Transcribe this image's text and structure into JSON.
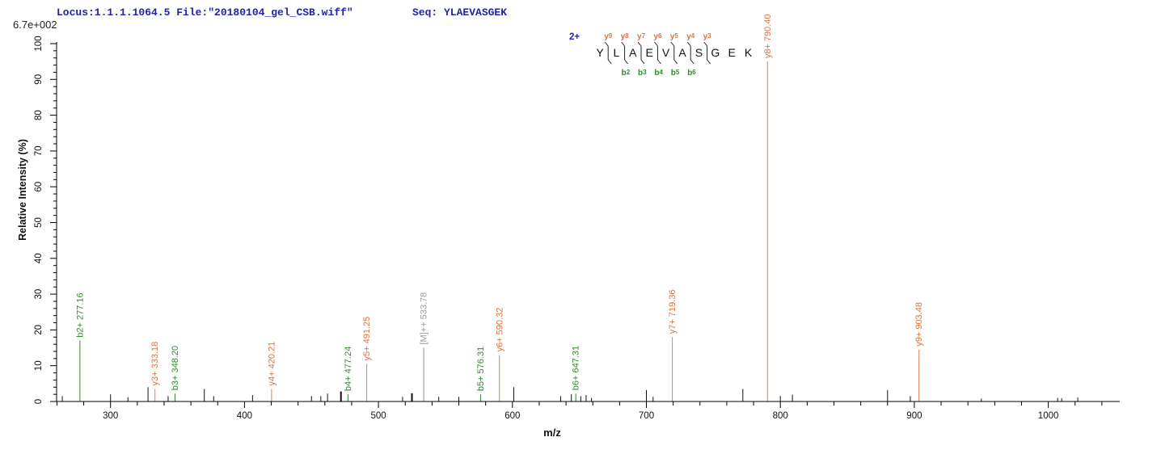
{
  "header": {
    "locus_file": "Locus:1.1.1.1064.5 File:\"20180104_gel_CSB.wiff\"",
    "seq_label": "Seq: YLAEVASGEK",
    "max_intensity": "6.7e+002"
  },
  "colors": {
    "header_blue": "#2121ae",
    "charge_blue": "#2222cc",
    "y_ion_label": "#e2703c",
    "y_ion_stick": "#e08050",
    "b_ion_label": "#2e8b2e",
    "b_ion_stick": "#2a8a2a",
    "precursor_label": "#9a9a9a",
    "precursor_stick": "#888888",
    "unassigned_stick": "#111111",
    "axis": "#000000"
  },
  "annotation": {
    "charge": "2+",
    "residues": [
      "Y",
      "L",
      "A",
      "E",
      "V",
      "A",
      "S",
      "G",
      "E",
      "K"
    ],
    "y_ions": [
      {
        "label": "y",
        "num": "9",
        "after": 1
      },
      {
        "label": "y",
        "num": "8",
        "after": 2
      },
      {
        "label": "y",
        "num": "7",
        "after": 3
      },
      {
        "label": "y",
        "num": "6",
        "after": 4
      },
      {
        "label": "y",
        "num": "5",
        "after": 5
      },
      {
        "label": "y",
        "num": "4",
        "after": 6
      },
      {
        "label": "y",
        "num": "3",
        "after": 7
      }
    ],
    "b_ions": [
      {
        "label": "b",
        "num": "2",
        "after": 2
      },
      {
        "label": "b",
        "num": "3",
        "after": 3
      },
      {
        "label": "b",
        "num": "4",
        "after": 4
      },
      {
        "label": "b",
        "num": "5",
        "after": 5
      },
      {
        "label": "b",
        "num": "6",
        "after": 6
      }
    ]
  },
  "chart_data": {
    "type": "bar",
    "subtype": "mass-spectrum-stick-plot",
    "title": "",
    "xlabel": "m/z",
    "ylabel": "Relative  Intensity (%)",
    "xlim": [
      259,
      1053
    ],
    "ylim": [
      0,
      100
    ],
    "x_major_ticks": [
      300,
      400,
      500,
      600,
      700,
      800,
      900,
      1000
    ],
    "x_minor_step": 20,
    "x_minor_range": [
      260,
      1040
    ],
    "y_major_ticks": [
      0,
      10,
      20,
      30,
      40,
      50,
      60,
      70,
      80,
      90,
      100
    ],
    "y_minor_step": 2,
    "grid": false,
    "legend": false,
    "labeled_peaks": [
      {
        "label": "b2+ 277.16",
        "mz": 277.16,
        "intensity": 17,
        "type": "b"
      },
      {
        "label": "y3+ 333.18",
        "mz": 333.18,
        "intensity": 3.5,
        "type": "y"
      },
      {
        "label": "b3+ 348.20",
        "mz": 348.2,
        "intensity": 2.2,
        "type": "b"
      },
      {
        "label": "y4+ 420.21",
        "mz": 420.21,
        "intensity": 3.5,
        "type": "y"
      },
      {
        "label": "b4+ 477.24",
        "mz": 477.24,
        "intensity": 2.0,
        "type": "b"
      },
      {
        "label": "y5+ 491.25",
        "mz": 491.25,
        "intensity": 10.5,
        "type": "y"
      },
      {
        "label": "[M]++ 533.78",
        "mz": 533.78,
        "intensity": 15,
        "type": "precursor"
      },
      {
        "label": "b5+ 576.31",
        "mz": 576.31,
        "intensity": 2.0,
        "type": "b"
      },
      {
        "label": "y6+ 590.32",
        "mz": 590.32,
        "intensity": 13,
        "type": "y"
      },
      {
        "label": "b6+ 647.31",
        "mz": 647.31,
        "intensity": 2.2,
        "type": "b"
      },
      {
        "label": "y7+ 719.36",
        "mz": 719.36,
        "intensity": 18,
        "type": "y"
      },
      {
        "label": "y8+ 790.40",
        "mz": 790.4,
        "intensity": 95,
        "type": "y"
      },
      {
        "label": "y9+ 903.48",
        "mz": 903.48,
        "intensity": 14.5,
        "type": "y"
      }
    ],
    "unlabeled_peaks": [
      {
        "mz": 264,
        "intensity": 1.5
      },
      {
        "mz": 300,
        "intensity": 2.0
      },
      {
        "mz": 313,
        "intensity": 1.2
      },
      {
        "mz": 328,
        "intensity": 4.0
      },
      {
        "mz": 343,
        "intensity": 1.5
      },
      {
        "mz": 370,
        "intensity": 3.5
      },
      {
        "mz": 377,
        "intensity": 1.5
      },
      {
        "mz": 406,
        "intensity": 1.8
      },
      {
        "mz": 450,
        "intensity": 1.5
      },
      {
        "mz": 457,
        "intensity": 1.5
      },
      {
        "mz": 462,
        "intensity": 2.2
      },
      {
        "mz": 472,
        "intensity": 2.8,
        "bold": true
      },
      {
        "mz": 518,
        "intensity": 1.3
      },
      {
        "mz": 525,
        "intensity": 2.3,
        "bold": true
      },
      {
        "mz": 545,
        "intensity": 1.3
      },
      {
        "mz": 560,
        "intensity": 1.3
      },
      {
        "mz": 601,
        "intensity": 4.0
      },
      {
        "mz": 636,
        "intensity": 1.5
      },
      {
        "mz": 644,
        "intensity": 2.0
      },
      {
        "mz": 651,
        "intensity": 1.5
      },
      {
        "mz": 655,
        "intensity": 1.8
      },
      {
        "mz": 659,
        "intensity": 1.0
      },
      {
        "mz": 700,
        "intensity": 3.2
      },
      {
        "mz": 705,
        "intensity": 1.3
      },
      {
        "mz": 772,
        "intensity": 3.5
      },
      {
        "mz": 800,
        "intensity": 1.5
      },
      {
        "mz": 809,
        "intensity": 1.9
      },
      {
        "mz": 880,
        "intensity": 3.2
      },
      {
        "mz": 897,
        "intensity": 1.5
      },
      {
        "mz": 950,
        "intensity": 0.8
      },
      {
        "mz": 1007,
        "intensity": 1.0
      },
      {
        "mz": 1010,
        "intensity": 0.9
      },
      {
        "mz": 1022,
        "intensity": 1.1
      }
    ]
  }
}
